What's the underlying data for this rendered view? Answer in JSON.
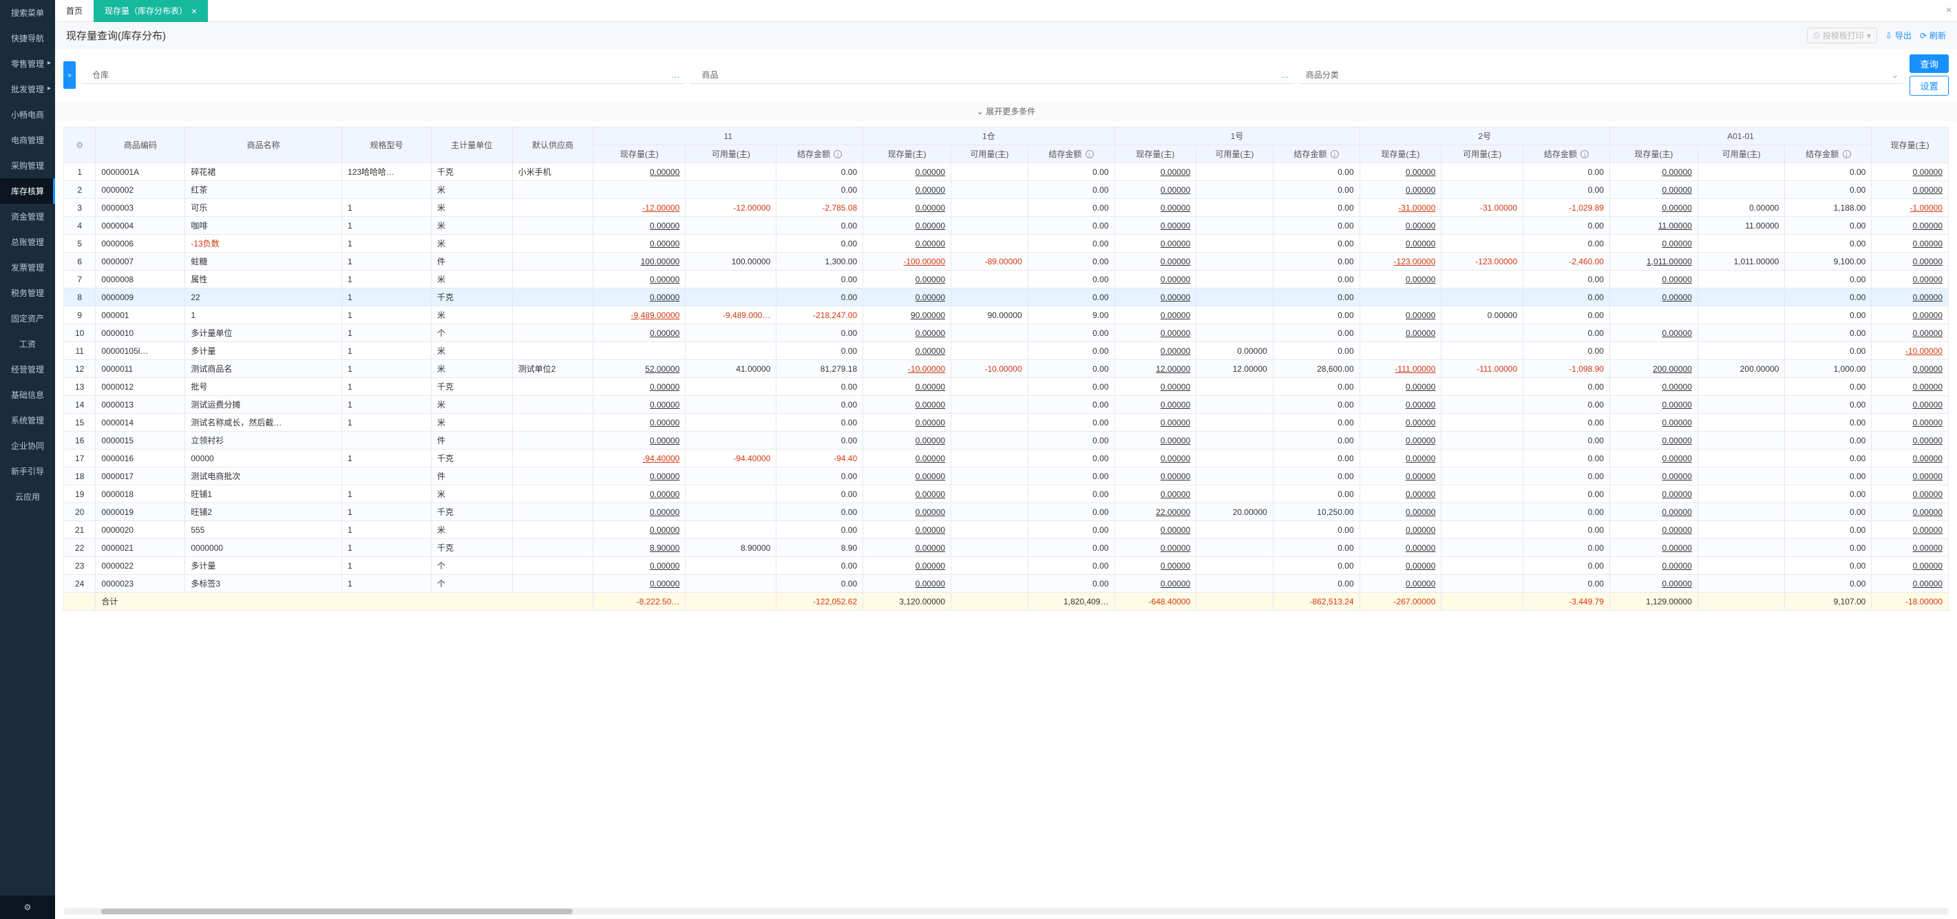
{
  "sidebar": {
    "items": [
      {
        "label": "搜索菜单",
        "arrow": false
      },
      {
        "label": "快捷导航",
        "arrow": false
      },
      {
        "label": "零售管理",
        "arrow": true
      },
      {
        "label": "批发管理",
        "arrow": true
      },
      {
        "label": "小畅电商",
        "arrow": false
      },
      {
        "label": "电商管理",
        "arrow": false
      },
      {
        "label": "采购管理",
        "arrow": false
      },
      {
        "label": "库存核算",
        "arrow": false,
        "active": true
      },
      {
        "label": "资金管理",
        "arrow": false
      },
      {
        "label": "总账管理",
        "arrow": false
      },
      {
        "label": "发票管理",
        "arrow": false
      },
      {
        "label": "税务管理",
        "arrow": false
      },
      {
        "label": "固定资产",
        "arrow": false
      },
      {
        "label": "工资",
        "arrow": false
      },
      {
        "label": "经营管理",
        "arrow": false
      },
      {
        "label": "基础信息",
        "arrow": false
      },
      {
        "label": "系统管理",
        "arrow": false
      },
      {
        "label": "企业协同",
        "arrow": false
      },
      {
        "label": "新手引导",
        "arrow": false
      },
      {
        "label": "云应用",
        "arrow": false
      }
    ]
  },
  "tabs": {
    "home": "首页",
    "active": "现存量（库存分布表）"
  },
  "header": {
    "title": "现存量查询(库存分布)",
    "print": "按模板打印",
    "export": "导出",
    "refresh": "刷新"
  },
  "filters": {
    "warehouse": "仓库",
    "product": "商品",
    "category": "商品分类",
    "query": "查询",
    "settings": "设置",
    "expand": "展开更多条件"
  },
  "table": {
    "groupHeaders": [
      "11",
      "1仓",
      "1号",
      "2号",
      "A01-01"
    ],
    "subHeaders": {
      "idx": "",
      "gear": "⚙",
      "code": "商品编码",
      "name": "商品名称",
      "spec": "规格型号",
      "unit": "主计量单位",
      "supplier": "默认供应商",
      "stock": "现存量(主)",
      "avail": "可用量(主)",
      "amount": "结存金额",
      "stock6": "现存量(主)"
    },
    "rows": [
      {
        "i": 1,
        "code": "0000001A",
        "name": "碎花裙",
        "spec": "123哈哈哈…",
        "unit": "千克",
        "supplier": "小米手机",
        "w": [
          [
            "0.00000",
            "",
            "0.00"
          ],
          [
            "0.00000",
            "",
            "0.00"
          ],
          [
            "0.00000",
            "",
            "0.00"
          ],
          [
            "0.00000",
            "",
            "0.00"
          ],
          [
            "0.00000",
            "",
            "0.00"
          ]
        ],
        "x": "0.00000"
      },
      {
        "i": 2,
        "code": "0000002",
        "name": "红茶",
        "spec": "",
        "unit": "米",
        "supplier": "",
        "w": [
          [
            "",
            "",
            "0.00"
          ],
          [
            "0.00000",
            "",
            "0.00"
          ],
          [
            "0.00000",
            "",
            "0.00"
          ],
          [
            "0.00000",
            "",
            "0.00"
          ],
          [
            "0.00000",
            "",
            "0.00"
          ]
        ],
        "x": "0.00000"
      },
      {
        "i": 3,
        "code": "0000003",
        "name": "可乐",
        "spec": "1",
        "unit": "米",
        "supplier": "",
        "w": [
          [
            "-12.00000",
            "-12.00000",
            "-2,785.08"
          ],
          [
            "0.00000",
            "",
            "0.00"
          ],
          [
            "0.00000",
            "",
            "0.00"
          ],
          [
            "-31.00000",
            "-31.00000",
            "-1,029.89"
          ],
          [
            "0.00000",
            "0.00000",
            "1,188.00"
          ]
        ],
        "x": "-1.00000"
      },
      {
        "i": 4,
        "code": "0000004",
        "name": "咖啡",
        "spec": "1",
        "unit": "米",
        "supplier": "",
        "w": [
          [
            "0.00000",
            "",
            "0.00"
          ],
          [
            "0.00000",
            "",
            "0.00"
          ],
          [
            "0.00000",
            "",
            "0.00"
          ],
          [
            "0.00000",
            "",
            "0.00"
          ],
          [
            "11.00000",
            "11.00000",
            "0.00"
          ]
        ],
        "x": "0.00000"
      },
      {
        "i": 5,
        "code": "0000006",
        "name": "-13负数",
        "nameNeg": true,
        "spec": "1",
        "unit": "米",
        "supplier": "",
        "w": [
          [
            "0.00000",
            "",
            "0.00"
          ],
          [
            "0.00000",
            "",
            "0.00"
          ],
          [
            "0.00000",
            "",
            "0.00"
          ],
          [
            "0.00000",
            "",
            "0.00"
          ],
          [
            "0.00000",
            "",
            "0.00"
          ]
        ],
        "x": "0.00000"
      },
      {
        "i": 6,
        "code": "0000007",
        "name": "蛀糖",
        "spec": "1",
        "unit": "件",
        "supplier": "",
        "w": [
          [
            "100.00000",
            "100.00000",
            "1,300.00"
          ],
          [
            "-100.00000",
            "-89.00000",
            "0.00"
          ],
          [
            "0.00000",
            "",
            "0.00"
          ],
          [
            "-123.00000",
            "-123.00000",
            "-2,460.00"
          ],
          [
            "1,011.00000",
            "1,011.00000",
            "9,100.00"
          ]
        ],
        "x": "0.00000"
      },
      {
        "i": 7,
        "code": "0000008",
        "name": "属性",
        "spec": "1",
        "unit": "米",
        "supplier": "",
        "w": [
          [
            "0.00000",
            "",
            "0.00"
          ],
          [
            "0.00000",
            "",
            "0.00"
          ],
          [
            "0.00000",
            "",
            "0.00"
          ],
          [
            "0.00000",
            "",
            "0.00"
          ],
          [
            "0.00000",
            "",
            "0.00"
          ]
        ],
        "x": "0.00000"
      },
      {
        "i": 8,
        "code": "0000009",
        "name": "22",
        "spec": "1",
        "unit": "千克",
        "supplier": "",
        "hover": true,
        "w": [
          [
            "0.00000",
            "",
            "0.00"
          ],
          [
            "0.00000",
            "",
            "0.00"
          ],
          [
            "0.00000",
            "",
            "0.00"
          ],
          [
            "",
            "",
            "0.00"
          ],
          [
            "0.00000",
            "",
            "0.00"
          ]
        ],
        "x": "0.00000"
      },
      {
        "i": 9,
        "code": "000001",
        "name": "1",
        "spec": "1",
        "unit": "米",
        "supplier": "",
        "w": [
          [
            "-9,489.00000",
            "-9,489.000…",
            "-218,247.00"
          ],
          [
            "90.00000",
            "90.00000",
            "9.00"
          ],
          [
            "0.00000",
            "",
            "0.00"
          ],
          [
            "0.00000",
            "0.00000",
            "0.00"
          ],
          [
            "",
            "",
            "0.00"
          ]
        ],
        "x": "0.00000"
      },
      {
        "i": 10,
        "code": "0000010",
        "name": "多计量单位",
        "spec": "1",
        "unit": "个",
        "supplier": "",
        "w": [
          [
            "0.00000",
            "",
            "0.00"
          ],
          [
            "0.00000",
            "",
            "0.00"
          ],
          [
            "0.00000",
            "",
            "0.00"
          ],
          [
            "0.00000",
            "",
            "0.00"
          ],
          [
            "0.00000",
            "",
            "0.00"
          ]
        ],
        "x": "0.00000"
      },
      {
        "i": 11,
        "code": "00000105l…",
        "name": "多计量",
        "spec": "1",
        "unit": "米",
        "supplier": "",
        "w": [
          [
            "",
            "",
            "0.00"
          ],
          [
            "0.00000",
            "",
            "0.00"
          ],
          [
            "0.00000",
            "0.00000",
            "0.00"
          ],
          [
            "",
            "",
            "0.00"
          ],
          [
            "",
            "",
            "0.00"
          ]
        ],
        "x": "-10.00000"
      },
      {
        "i": 12,
        "code": "0000011",
        "name": "测试商品名",
        "spec": "1",
        "unit": "米",
        "supplier": "测试单位2",
        "w": [
          [
            "52.00000",
            "41.00000",
            "81,279.18"
          ],
          [
            "-10.00000",
            "-10.00000",
            "0.00"
          ],
          [
            "12.00000",
            "12.00000",
            "28,600.00"
          ],
          [
            "-111.00000",
            "-111.00000",
            "-1,098.90"
          ],
          [
            "200.00000",
            "200.00000",
            "1,000.00"
          ]
        ],
        "x": "0.00000"
      },
      {
        "i": 13,
        "code": "0000012",
        "name": "批号",
        "spec": "1",
        "unit": "千克",
        "supplier": "",
        "w": [
          [
            "0.00000",
            "",
            "0.00"
          ],
          [
            "0.00000",
            "",
            "0.00"
          ],
          [
            "0.00000",
            "",
            "0.00"
          ],
          [
            "0.00000",
            "",
            "0.00"
          ],
          [
            "0.00000",
            "",
            "0.00"
          ]
        ],
        "x": "0.00000"
      },
      {
        "i": 14,
        "code": "0000013",
        "name": "测试运费分摊",
        "spec": "1",
        "unit": "米",
        "supplier": "",
        "w": [
          [
            "0.00000",
            "",
            "0.00"
          ],
          [
            "0.00000",
            "",
            "0.00"
          ],
          [
            "0.00000",
            "",
            "0.00"
          ],
          [
            "0.00000",
            "",
            "0.00"
          ],
          [
            "0.00000",
            "",
            "0.00"
          ]
        ],
        "x": "0.00000"
      },
      {
        "i": 15,
        "code": "0000014",
        "name": "测试名称咸长，然后截…",
        "spec": "1",
        "unit": "米",
        "supplier": "",
        "w": [
          [
            "0.00000",
            "",
            "0.00"
          ],
          [
            "0.00000",
            "",
            "0.00"
          ],
          [
            "0.00000",
            "",
            "0.00"
          ],
          [
            "0.00000",
            "",
            "0.00"
          ],
          [
            "0.00000",
            "",
            "0.00"
          ]
        ],
        "x": "0.00000"
      },
      {
        "i": 16,
        "code": "0000015",
        "name": "立领衬衫",
        "spec": "",
        "unit": "件",
        "supplier": "",
        "w": [
          [
            "0.00000",
            "",
            "0.00"
          ],
          [
            "0.00000",
            "",
            "0.00"
          ],
          [
            "0.00000",
            "",
            "0.00"
          ],
          [
            "0.00000",
            "",
            "0.00"
          ],
          [
            "0.00000",
            "",
            "0.00"
          ]
        ],
        "x": "0.00000"
      },
      {
        "i": 17,
        "code": "0000016",
        "name": "00000",
        "spec": "1",
        "unit": "千克",
        "supplier": "",
        "w": [
          [
            "-94.40000",
            "-94.40000",
            "-94.40"
          ],
          [
            "0.00000",
            "",
            "0.00"
          ],
          [
            "0.00000",
            "",
            "0.00"
          ],
          [
            "0.00000",
            "",
            "0.00"
          ],
          [
            "0.00000",
            "",
            "0.00"
          ]
        ],
        "x": "0.00000"
      },
      {
        "i": 18,
        "code": "0000017",
        "name": "测试电商批次",
        "spec": "",
        "unit": "件",
        "supplier": "",
        "w": [
          [
            "0.00000",
            "",
            "0.00"
          ],
          [
            "0.00000",
            "",
            "0.00"
          ],
          [
            "0.00000",
            "",
            "0.00"
          ],
          [
            "0.00000",
            "",
            "0.00"
          ],
          [
            "0.00000",
            "",
            "0.00"
          ]
        ],
        "x": "0.00000"
      },
      {
        "i": 19,
        "code": "0000018",
        "name": "旺铺1",
        "spec": "1",
        "unit": "米",
        "supplier": "",
        "w": [
          [
            "0.00000",
            "",
            "0.00"
          ],
          [
            "0.00000",
            "",
            "0.00"
          ],
          [
            "0.00000",
            "",
            "0.00"
          ],
          [
            "0.00000",
            "",
            "0.00"
          ],
          [
            "0.00000",
            "",
            "0.00"
          ]
        ],
        "x": "0.00000"
      },
      {
        "i": 20,
        "code": "0000019",
        "name": "旺铺2",
        "spec": "1",
        "unit": "千克",
        "supplier": "",
        "w": [
          [
            "0.00000",
            "",
            "0.00"
          ],
          [
            "0.00000",
            "",
            "0.00"
          ],
          [
            "22.00000",
            "20.00000",
            "10,250.00"
          ],
          [
            "0.00000",
            "",
            "0.00"
          ],
          [
            "0.00000",
            "",
            "0.00"
          ]
        ],
        "x": "0.00000"
      },
      {
        "i": 21,
        "code": "0000020",
        "name": "555",
        "spec": "1",
        "unit": "米",
        "supplier": "",
        "w": [
          [
            "0.00000",
            "",
            "0.00"
          ],
          [
            "0.00000",
            "",
            "0.00"
          ],
          [
            "0.00000",
            "",
            "0.00"
          ],
          [
            "0.00000",
            "",
            "0.00"
          ],
          [
            "0.00000",
            "",
            "0.00"
          ]
        ],
        "x": "0.00000"
      },
      {
        "i": 22,
        "code": "0000021",
        "name": "0000000",
        "spec": "1",
        "unit": "千克",
        "supplier": "",
        "w": [
          [
            "8.90000",
            "8.90000",
            "8.90"
          ],
          [
            "0.00000",
            "",
            "0.00"
          ],
          [
            "0.00000",
            "",
            "0.00"
          ],
          [
            "0.00000",
            "",
            "0.00"
          ],
          [
            "0.00000",
            "",
            "0.00"
          ]
        ],
        "x": "0.00000"
      },
      {
        "i": 23,
        "code": "0000022",
        "name": "多计量",
        "spec": "1",
        "unit": "个",
        "supplier": "",
        "w": [
          [
            "0.00000",
            "",
            "0.00"
          ],
          [
            "0.00000",
            "",
            "0.00"
          ],
          [
            "0.00000",
            "",
            "0.00"
          ],
          [
            "0.00000",
            "",
            "0.00"
          ],
          [
            "0.00000",
            "",
            "0.00"
          ]
        ],
        "x": "0.00000"
      },
      {
        "i": 24,
        "code": "0000023",
        "name": "多标签3",
        "spec": "1",
        "unit": "个",
        "supplier": "",
        "w": [
          [
            "0.00000",
            "",
            "0.00"
          ],
          [
            "0.00000",
            "",
            "0.00"
          ],
          [
            "0.00000",
            "",
            "0.00"
          ],
          [
            "0.00000",
            "",
            "0.00"
          ],
          [
            "0.00000",
            "",
            "0.00"
          ]
        ],
        "x": "0.00000"
      }
    ],
    "total": {
      "label": "合计",
      "w": [
        [
          "-8,222.50…",
          "",
          "-122,052.62"
        ],
        [
          "3,120.00000",
          "",
          "1,820,409…"
        ],
        [
          "-648.40000",
          "",
          "-862,513.24"
        ],
        [
          "-267.00000",
          "",
          "-3,449.79"
        ],
        [
          "1,129.00000",
          "",
          "9,107.00"
        ]
      ],
      "x": "-18.00000"
    }
  }
}
